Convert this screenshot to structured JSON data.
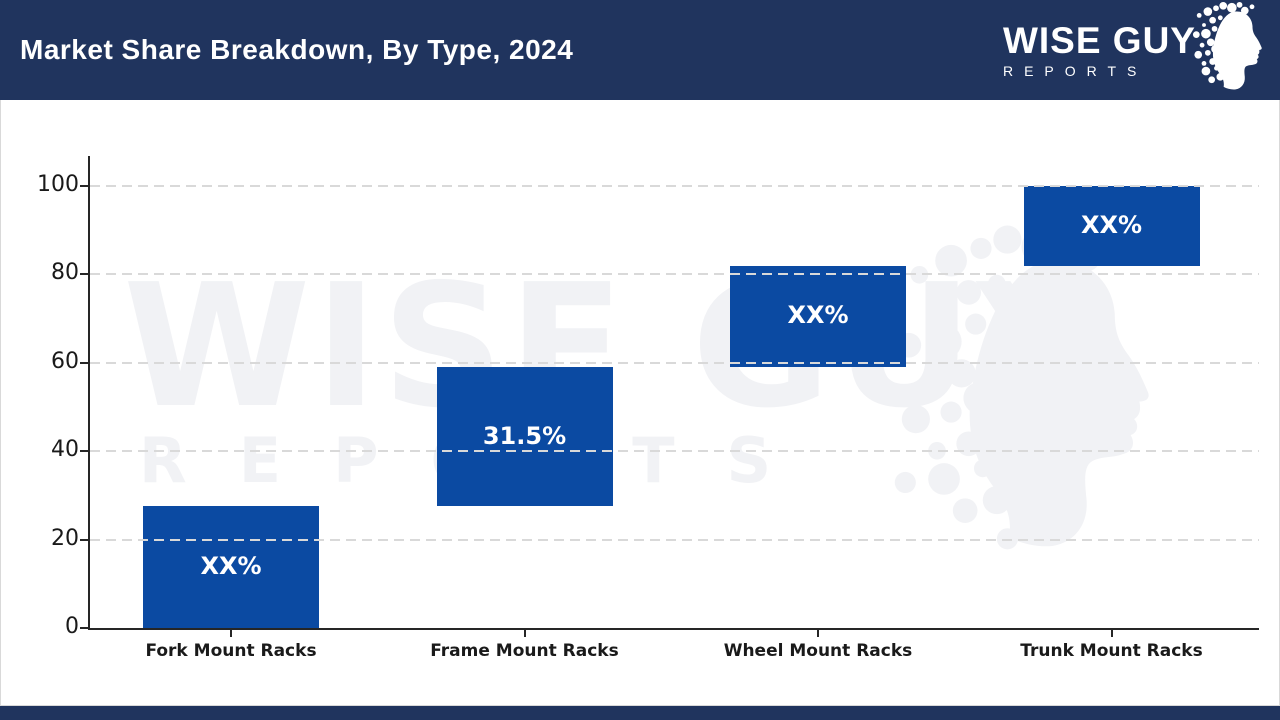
{
  "header": {
    "title": "Market Share Breakdown, By Type, 2024",
    "logo_primary": "WISE GUY",
    "logo_secondary": "REPORTS"
  },
  "watermark": {
    "primary": "WISE GUY",
    "secondary": "REPORTS"
  },
  "colors": {
    "header_bg": "#20345E",
    "bar_fill": "#0B4AA2",
    "grid": "#D9D9D9",
    "axis": "#262626",
    "watermark": "#F1F2F5"
  },
  "chart_data": {
    "type": "bar",
    "subtype": "waterfall",
    "title": "Market Share Breakdown, By Type, 2024",
    "categories": [
      "Fork Mount Racks",
      "Frame Mount Racks",
      "Wheel Mount Racks",
      "Trunk Mount Racks"
    ],
    "series": [
      {
        "name": "Market Share",
        "segments": [
          {
            "category": "Fork Mount Racks",
            "start": 0,
            "end": 27.5,
            "label": "XX%"
          },
          {
            "category": "Frame Mount Racks",
            "start": 27.5,
            "end": 59,
            "label": "31.5%"
          },
          {
            "category": "Wheel Mount Racks",
            "start": 59,
            "end": 82,
            "label": "XX%"
          },
          {
            "category": "Trunk Mount Racks",
            "start": 82,
            "end": 100,
            "label": "XX%"
          }
        ]
      }
    ],
    "xlabel": "",
    "ylabel": "",
    "ylim": [
      0,
      100
    ],
    "yticks": [
      0,
      20,
      40,
      60,
      80,
      100
    ],
    "grid": "dashed-horizontal-over-bars",
    "legend": "none"
  }
}
